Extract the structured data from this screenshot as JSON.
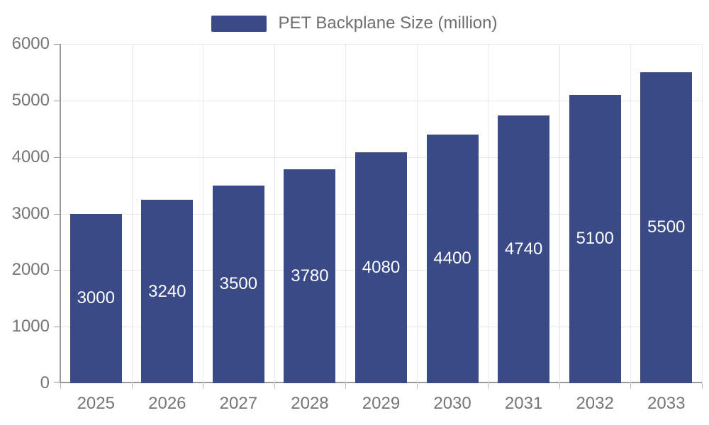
{
  "legend": {
    "label": "PET Backplane Size (million)"
  },
  "chart_data": {
    "type": "bar",
    "title": "PET Backplane Size (million)",
    "categories": [
      "2025",
      "2026",
      "2027",
      "2028",
      "2029",
      "2030",
      "2031",
      "2032",
      "2033"
    ],
    "values": [
      3000,
      3240,
      3500,
      3780,
      4080,
      4400,
      4740,
      5100,
      5500
    ],
    "xlabel": "",
    "ylabel": "",
    "ylim": [
      0,
      6000
    ],
    "yticks": [
      0,
      1000,
      2000,
      3000,
      4000,
      5000,
      6000
    ],
    "grid": true,
    "legend_position": "top",
    "value_labels_inside_bars": true
  },
  "colors": {
    "bar": "#3A4A87",
    "value_label": "#FFFFFF",
    "axis_text": "#757575",
    "legend_text": "#6E6E6E",
    "grid_line": "#E8E8E8",
    "axis_line": "#999999",
    "tick_line": "#BBBBBB",
    "background": "#FFFFFF"
  }
}
